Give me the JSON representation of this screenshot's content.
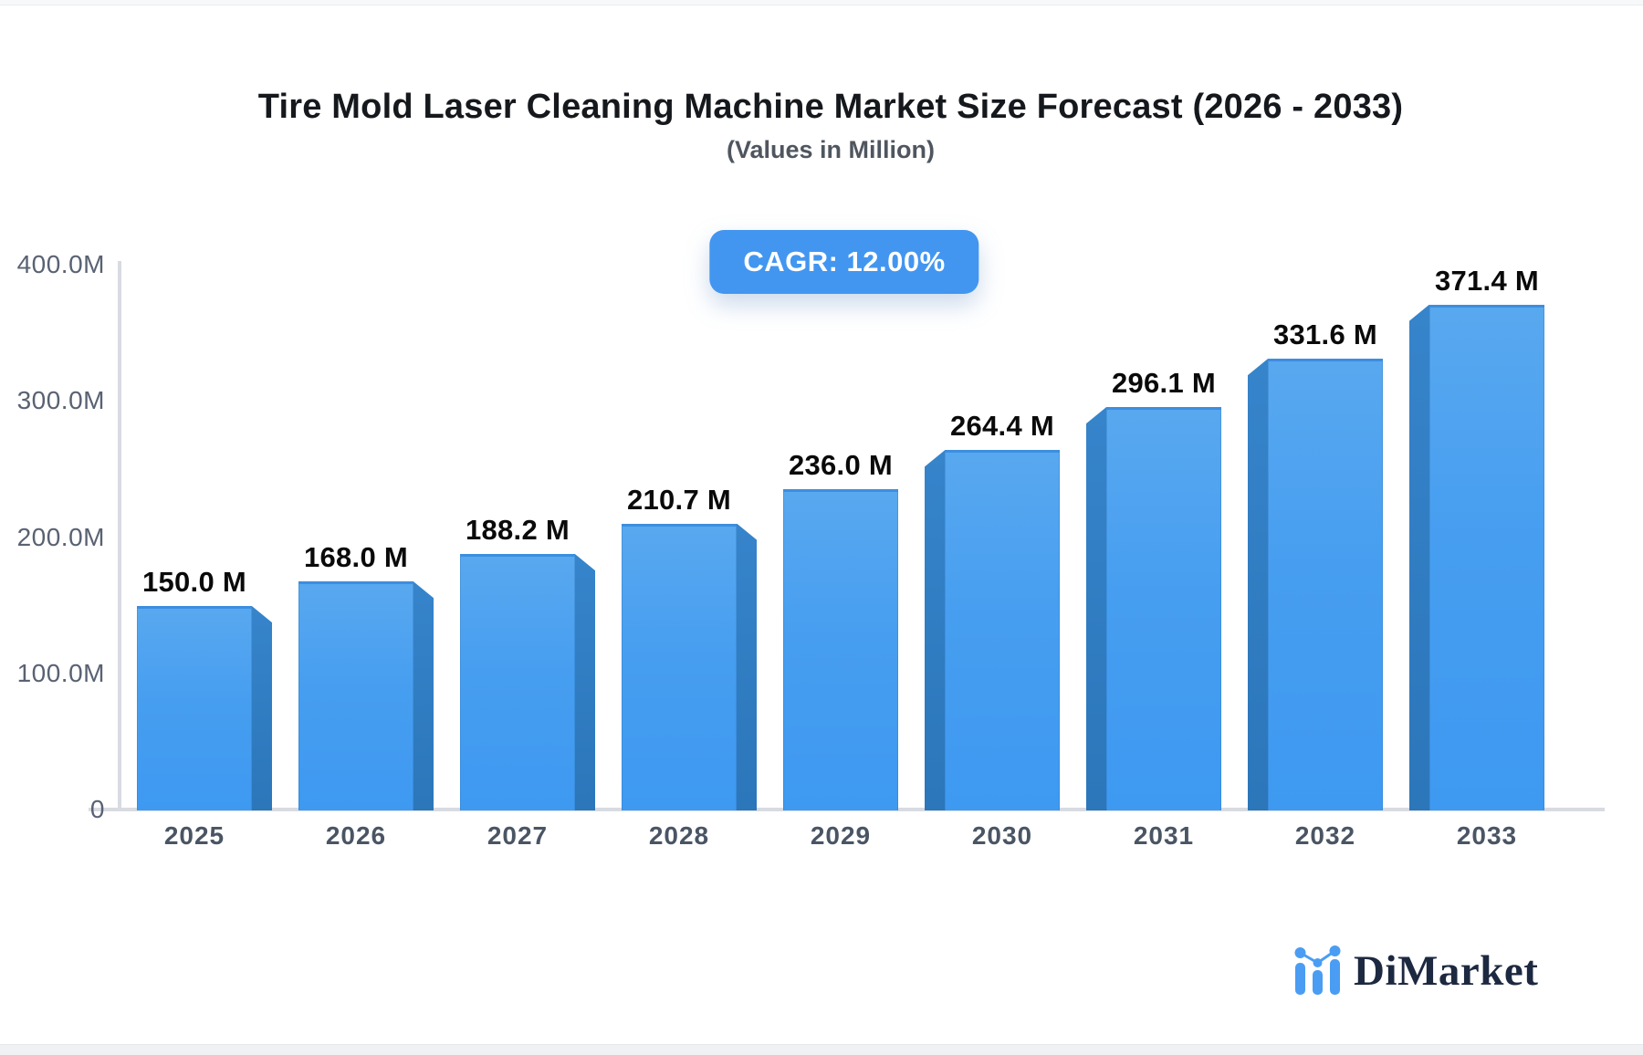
{
  "header": {
    "title": "Tire Mold Laser Cleaning Machine Market Size Forecast (2026 - 2033)",
    "subtitle": "(Values in Million)",
    "cagr_badge_label": "CAGR: 12.00%"
  },
  "chart_data": {
    "type": "bar",
    "title": "Tire Mold Laser Cleaning Machine Market Size Forecast (2026 - 2033)",
    "subtitle": "(Values in Million)",
    "cagr": "12.00%",
    "categories": [
      "2025",
      "2026",
      "2027",
      "2028",
      "2029",
      "2030",
      "2031",
      "2032",
      "2033"
    ],
    "values": [
      150.0,
      168.0,
      188.2,
      210.7,
      236.0,
      264.4,
      296.1,
      331.6,
      371.4
    ],
    "bar_labels": [
      "150.0 M",
      "168.0 M",
      "188.2 M",
      "210.7 M",
      "236.0 M",
      "264.4 M",
      "296.1 M",
      "331.6 M",
      "371.4 M"
    ],
    "xlabel": "",
    "ylabel": "",
    "ylim": [
      0,
      400
    ],
    "grid": false,
    "legend": "none",
    "y_ticks": [
      {
        "value": 400,
        "label": "400.0M"
      },
      {
        "value": 300,
        "label": "300.0M"
      },
      {
        "value": 200,
        "label": "200.0M"
      },
      {
        "value": 100,
        "label": "100.0M"
      },
      {
        "value": 0,
        "label": "0"
      }
    ],
    "colors": {
      "bar_face_top": "#58a8ef",
      "bar_face_bottom": "#3e99f1",
      "bar_side": "#2c76ba",
      "bar_top_edge": "#3c8edf",
      "badge_background": "#4296f0",
      "badge_text": "#ffffff",
      "axis_line": "#d8dbe1",
      "tick_text": "#596273",
      "value_label_text": "#0a0a0a",
      "year_label_text": "#4a5564"
    }
  },
  "branding": {
    "logo_text": "DiMarket",
    "logo_text_color": "#1c2940",
    "logo_icon": "mini-bar-line-chart-icon",
    "logo_icon_color": "#4a9df3"
  }
}
